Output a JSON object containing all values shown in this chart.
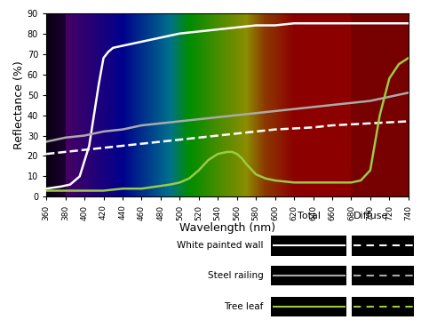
{
  "wavelength_range": [
    360,
    740
  ],
  "x_ticks": [
    360,
    380,
    400,
    420,
    440,
    460,
    480,
    500,
    520,
    540,
    560,
    580,
    600,
    620,
    640,
    660,
    680,
    700,
    720,
    740
  ],
  "y_range": [
    0,
    90
  ],
  "y_ticks": [
    0,
    10,
    20,
    30,
    40,
    50,
    60,
    70,
    80,
    90
  ],
  "xlabel": "Wavelength (nm)",
  "ylabel": "Reflectance (%)",
  "white_wall_total": {
    "wavelengths": [
      360,
      375,
      385,
      395,
      405,
      415,
      420,
      425,
      430,
      440,
      450,
      460,
      470,
      480,
      490,
      500,
      520,
      540,
      560,
      580,
      600,
      620,
      640,
      660,
      680,
      700,
      720,
      740
    ],
    "values": [
      4,
      5,
      6,
      10,
      25,
      55,
      68,
      71,
      73,
      74,
      75,
      76,
      77,
      78,
      79,
      80,
      81,
      82,
      83,
      84,
      84,
      85,
      85,
      85,
      85,
      85,
      85,
      85
    ],
    "color": "white",
    "linewidth": 1.8,
    "linestyle": "solid"
  },
  "diffuse_line": {
    "wavelengths": [
      360,
      380,
      400,
      420,
      440,
      460,
      480,
      500,
      520,
      540,
      560,
      580,
      600,
      620,
      640,
      660,
      680,
      700,
      720,
      740
    ],
    "values": [
      21,
      22,
      23,
      24,
      25,
      26,
      27,
      28,
      29,
      30,
      31,
      32,
      33,
      33.5,
      34,
      35,
      35.5,
      36,
      36.5,
      37
    ],
    "color": "white",
    "linewidth": 1.8,
    "linestyle": "dashed"
  },
  "steel_railing_total": {
    "wavelengths": [
      360,
      380,
      400,
      420,
      440,
      460,
      480,
      500,
      520,
      540,
      560,
      580,
      600,
      620,
      640,
      660,
      680,
      700,
      720,
      740
    ],
    "values": [
      27,
      29,
      30,
      32,
      33,
      35,
      36,
      37,
      38,
      39,
      40,
      41,
      42,
      43,
      44,
      45,
      46,
      47,
      49,
      51
    ],
    "color": "#aaaaaa",
    "linewidth": 1.8,
    "linestyle": "solid"
  },
  "tree_leaf_total": {
    "wavelengths": [
      360,
      380,
      400,
      420,
      440,
      460,
      475,
      490,
      500,
      510,
      520,
      530,
      540,
      550,
      555,
      560,
      565,
      570,
      580,
      590,
      600,
      620,
      640,
      660,
      670,
      680,
      690,
      700,
      710,
      720,
      730,
      740
    ],
    "values": [
      3,
      3,
      3,
      3,
      4,
      4,
      5,
      6,
      7,
      9,
      13,
      18,
      21,
      22,
      22,
      21,
      19,
      16,
      11,
      9,
      8,
      7,
      7,
      7,
      7,
      7,
      8,
      13,
      40,
      58,
      65,
      68
    ],
    "color": "#99cc44",
    "linewidth": 1.8,
    "linestyle": "solid"
  },
  "legend_labels": [
    "White painted wall",
    "Steel railing",
    "Tree leaf"
  ],
  "legend_line_colors": [
    "white",
    "#aaaaaa",
    "#99cc44"
  ],
  "fig_width": 4.74,
  "fig_height": 3.69,
  "dpi": 100
}
